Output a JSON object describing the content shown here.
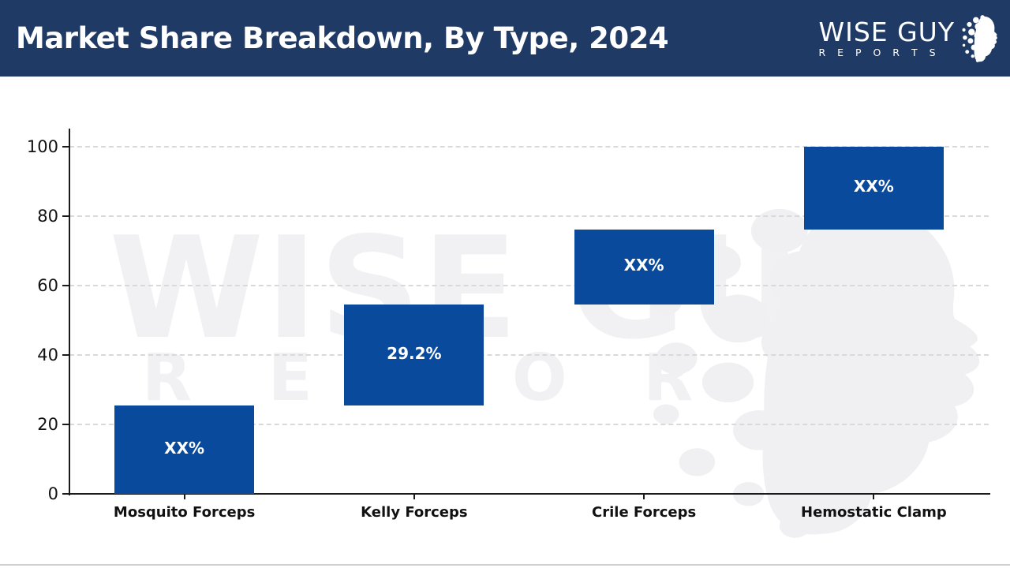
{
  "header": {
    "title": "Market Share Breakdown, By Type, 2024",
    "logo_line1": "WISE GUY",
    "logo_line2": "R E P O R T S"
  },
  "watermark": {
    "line1": "WISE GUY",
    "line2": "R E P O R T S"
  },
  "chart_data": {
    "type": "bar",
    "subtype": "floating-waterfall-percent",
    "title": "Market Share Breakdown, By Type, 2024",
    "categories": [
      "Mosquito Forceps",
      "Kelly Forceps",
      "Crile Forceps",
      "Hemostatic Clamp"
    ],
    "segments": [
      {
        "category": "Mosquito Forceps",
        "start": 0,
        "end": 25.4,
        "value": 25.4,
        "label": "XX%"
      },
      {
        "category": "Kelly Forceps",
        "start": 25.4,
        "end": 54.6,
        "value": 29.2,
        "label": "29.2%"
      },
      {
        "category": "Crile Forceps",
        "start": 54.6,
        "end": 76.2,
        "value": 21.6,
        "label": "XX%"
      },
      {
        "category": "Hemostatic Clamp",
        "start": 76.2,
        "end": 100,
        "value": 23.8,
        "label": "XX%"
      }
    ],
    "yticks": [
      0,
      20,
      40,
      60,
      80,
      100
    ],
    "ylim": [
      0,
      105
    ],
    "xlabel": "",
    "ylabel": "",
    "legend": "none",
    "grid": {
      "horizontal": true,
      "style": "dashed"
    }
  },
  "colors": {
    "header_bg": "#203a66",
    "bar": "#0a4a9c",
    "grid": "#d9d9d9",
    "axis": "#1a1a1a",
    "watermark": "#f1f1f4",
    "footer_line": "#cfcfcf"
  }
}
